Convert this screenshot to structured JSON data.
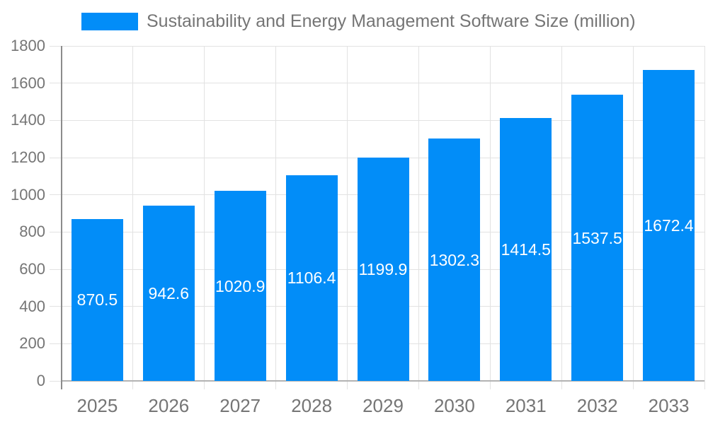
{
  "chart_data": {
    "type": "bar",
    "title": "Sustainability and Energy Management Software Size (million)",
    "legend_position": "top",
    "categories": [
      "2025",
      "2026",
      "2027",
      "2028",
      "2029",
      "2030",
      "2031",
      "2032",
      "2033"
    ],
    "series": [
      {
        "name": "Sustainability and Energy Management Software Size (million)",
        "values": [
          870.5,
          942.6,
          1020.9,
          1106.4,
          1199.9,
          1302.3,
          1414.5,
          1537.5,
          1672.4
        ]
      }
    ],
    "xlabel": "",
    "ylabel": "",
    "ylim": [
      0,
      1800
    ],
    "yticks": [
      0,
      200,
      400,
      600,
      800,
      1000,
      1200,
      1400,
      1600,
      1800
    ],
    "grid": true,
    "value_labels_shown": true,
    "colors": {
      "bar": "#028DF8",
      "axis_text": "#757575",
      "gridline": "#E2E2E2",
      "axis_line": "#8C8C8C",
      "baseline": "#B3B3B3",
      "value_label": "#FFFFFF",
      "background": "#FFFFFF"
    }
  }
}
